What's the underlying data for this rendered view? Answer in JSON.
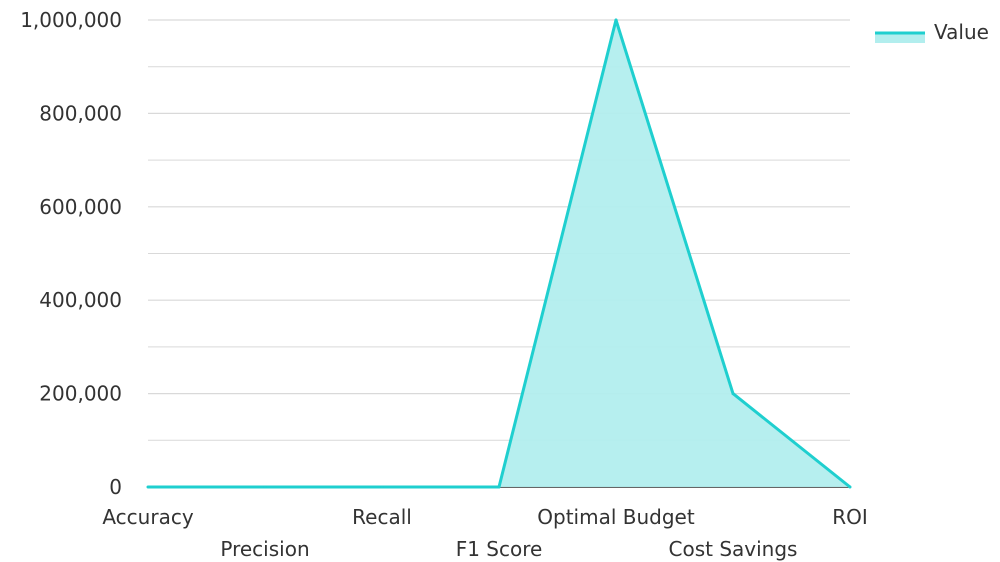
{
  "chart_data": {
    "type": "area",
    "categories": [
      "Accuracy",
      "Precision",
      "Recall",
      "F1 Score",
      "Optimal Budget",
      "Cost Savings",
      "ROI"
    ],
    "series": [
      {
        "name": "Value",
        "values": [
          0.9,
          0.88,
          0.87,
          0.85,
          1000000,
          200000,
          1.5
        ]
      }
    ],
    "y_ticks": [
      "0",
      "200,000",
      "400,000",
      "600,000",
      "800,000",
      "1,000,000"
    ],
    "ylim": [
      0,
      1000000
    ],
    "grid": true,
    "legend": "top-right",
    "colors": {
      "line": "#1fcfcf",
      "fill": "#b2eeee",
      "grid": "#d9d9d9",
      "axis": "#333333"
    }
  }
}
